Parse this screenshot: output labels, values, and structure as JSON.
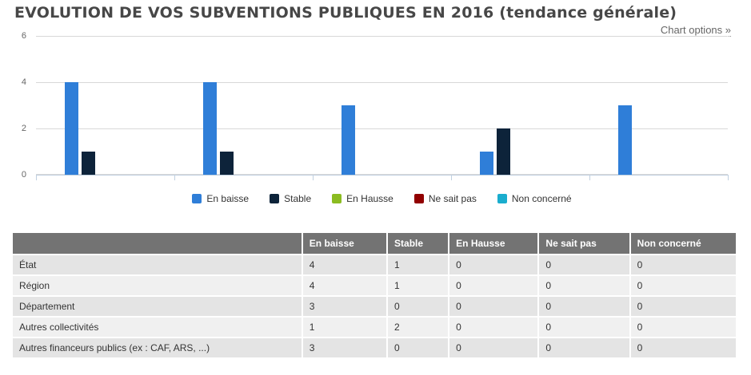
{
  "header": {
    "title": "EVOLUTION DE VOS SUBVENTIONS PUBLIQUES EN 2016 (tendance générale)",
    "chart_options_label": "Chart options »"
  },
  "chart_data": {
    "type": "bar",
    "categories": [
      "État",
      "Région",
      "Département",
      "Autres collectivités",
      "Autres financeurs publics (ex : CAF, ARS, ...)"
    ],
    "series": [
      {
        "name": "En baisse",
        "color": "#2f7ed8",
        "values": [
          4,
          4,
          3,
          1,
          3
        ]
      },
      {
        "name": "Stable",
        "color": "#0d233a",
        "values": [
          1,
          1,
          0,
          2,
          0
        ]
      },
      {
        "name": "En Hausse",
        "color": "#8bbc21",
        "values": [
          0,
          0,
          0,
          0,
          0
        ]
      },
      {
        "name": "Ne sait pas",
        "color": "#910000",
        "values": [
          0,
          0,
          0,
          0,
          0
        ]
      },
      {
        "name": "Non concerné",
        "color": "#1aadce",
        "values": [
          0,
          0,
          0,
          0,
          0
        ]
      }
    ],
    "title": "EVOLUTION DE VOS SUBVENTIONS PUBLIQUES EN 2016 (tendance générale)",
    "xlabel": "",
    "ylabel": "",
    "ylim": [
      0,
      6
    ],
    "yticks": [
      0,
      2,
      4,
      6
    ],
    "grid": true,
    "grid_line_color": "#d8d8d8",
    "axis_line_color": "#c0d0e0",
    "legend_position": "bottom"
  },
  "table": {
    "columns": [
      "",
      "En baisse",
      "Stable",
      "En Hausse",
      "Ne sait pas",
      "Non concerné"
    ],
    "rows": [
      {
        "label": "État",
        "values": [
          "4",
          "1",
          "0",
          "0",
          "0"
        ]
      },
      {
        "label": "Région",
        "values": [
          "4",
          "1",
          "0",
          "0",
          "0"
        ]
      },
      {
        "label": "Département",
        "values": [
          "3",
          "0",
          "0",
          "0",
          "0"
        ]
      },
      {
        "label": "Autres collectivités",
        "values": [
          "1",
          "2",
          "0",
          "0",
          "0"
        ]
      },
      {
        "label": "Autres financeurs publics (ex : CAF, ARS, ...)",
        "values": [
          "3",
          "0",
          "0",
          "0",
          "0"
        ]
      }
    ],
    "header_bg": "#737373",
    "row_bg_odd": "#e4e4e4",
    "row_bg_even": "#f0f0f0"
  }
}
